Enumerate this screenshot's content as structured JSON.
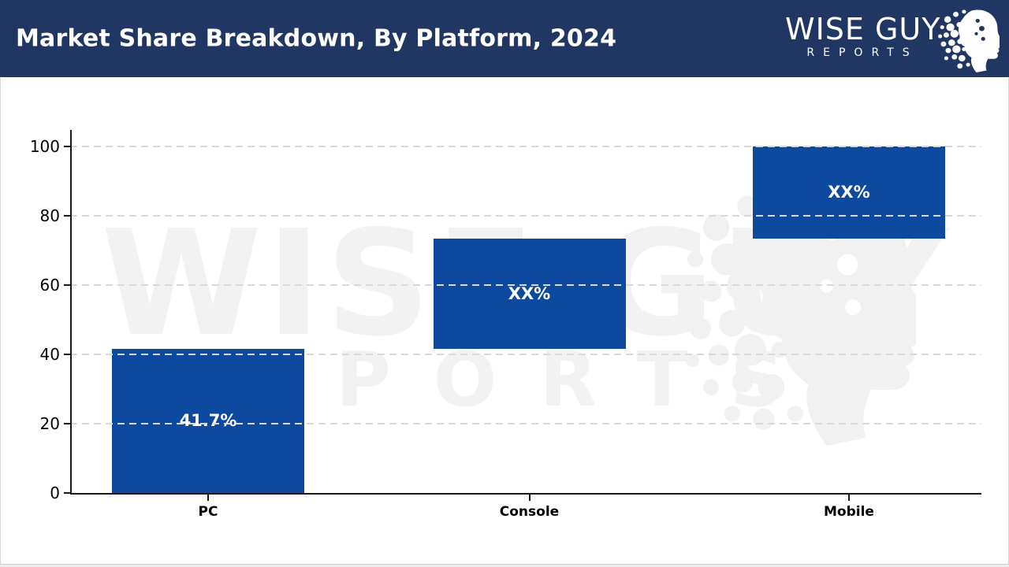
{
  "header": {
    "title": "Market Share Breakdown, By Platform, 2024",
    "logo": {
      "line1": "WISE GUY",
      "line2": "REPORTS"
    }
  },
  "watermark": {
    "line1": "WISE GUY",
    "line2": "REPORTS"
  },
  "colors": {
    "header_bg": "#203763",
    "bar": "#0d4a9f",
    "grid": "#d9d9d9",
    "axis": "#1a1a1a",
    "title_text": "#ffffff",
    "bar_label_text": "#ffffff",
    "watermark": "#f2f2f3"
  },
  "chart_data": {
    "type": "bar",
    "subtype": "waterfall",
    "title": "Market Share Breakdown, By Platform, 2024",
    "categories": [
      "PC",
      "Console",
      "Mobile"
    ],
    "segments": [
      {
        "category": "PC",
        "start": 0,
        "end": 41.7,
        "label": "41.7%"
      },
      {
        "category": "Console",
        "start": 41.7,
        "end": 73.5,
        "label": "XX%"
      },
      {
        "category": "Mobile",
        "start": 73.5,
        "end": 100,
        "label": "XX%"
      }
    ],
    "yticks": [
      0,
      20,
      40,
      60,
      80,
      100
    ],
    "ylim": [
      0,
      103.5
    ],
    "xlabel": "",
    "ylabel": "",
    "grid": "horizontal-dashed",
    "legend": null
  }
}
